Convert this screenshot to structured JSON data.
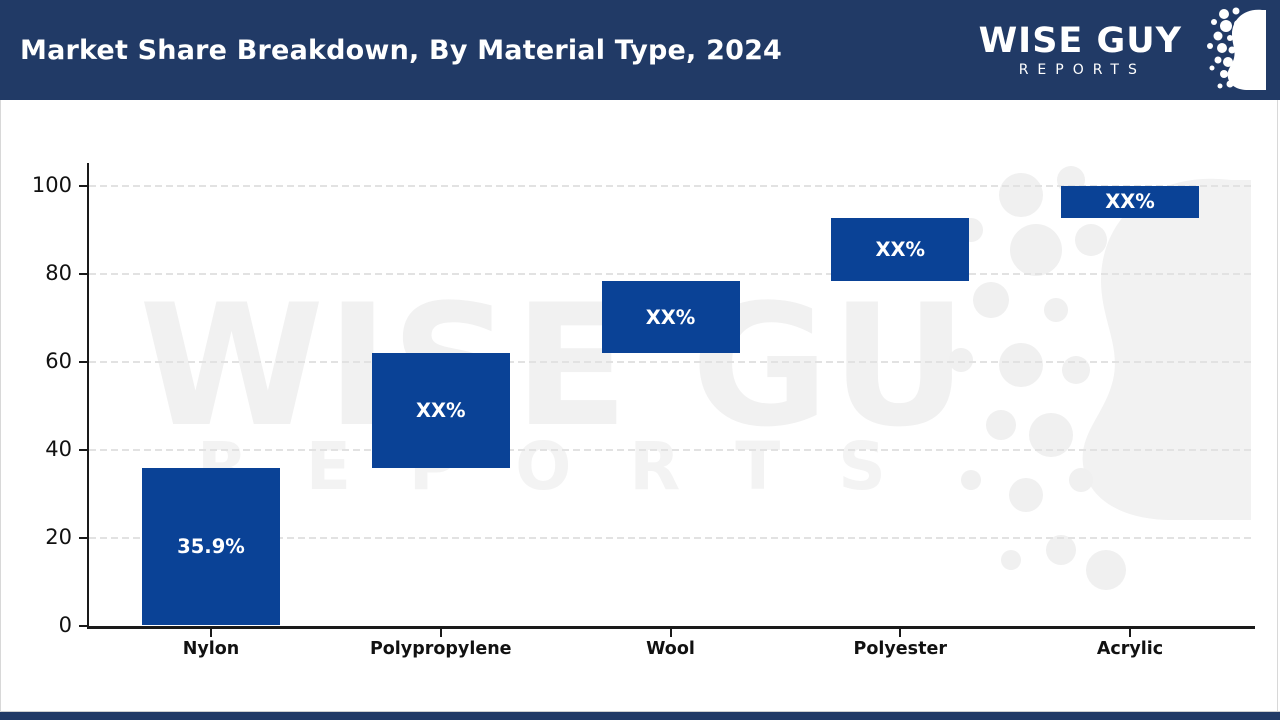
{
  "header": {
    "title": "Market Share Breakdown, By Material Type, 2024",
    "background_color": "#213a66",
    "logo": {
      "line1": "WISE GUY",
      "line2": "REPORTS"
    }
  },
  "watermark": {
    "line1": "WISE GU",
    "line2": "REPORTS"
  },
  "chart_data": {
    "type": "bar",
    "variant": "waterfall",
    "title": "Market Share Breakdown, By Material Type, 2024",
    "categories": [
      "Nylon",
      "Polypropylene",
      "Wool",
      "Polyester",
      "Acrylic"
    ],
    "segments": [
      {
        "category": "Nylon",
        "start": 0,
        "end": 35.9,
        "label": "35.9%"
      },
      {
        "category": "Polypropylene",
        "start": 35.9,
        "end": 62.0,
        "label": "XX%"
      },
      {
        "category": "Wool",
        "start": 62.0,
        "end": 78.2,
        "label": "XX%"
      },
      {
        "category": "Polyester",
        "start": 78.2,
        "end": 92.6,
        "label": "XX%"
      },
      {
        "category": "Acrylic",
        "start": 92.6,
        "end": 100.0,
        "label": "XX%"
      }
    ],
    "y_ticks": [
      0,
      20,
      40,
      60,
      80,
      100
    ],
    "ylim": [
      0,
      105
    ],
    "xlabel": "",
    "ylabel": "",
    "bar_color": "#0a4296",
    "bar_label_color": "#ffffff",
    "grid": "horizontal-dashed",
    "legend": "none"
  }
}
